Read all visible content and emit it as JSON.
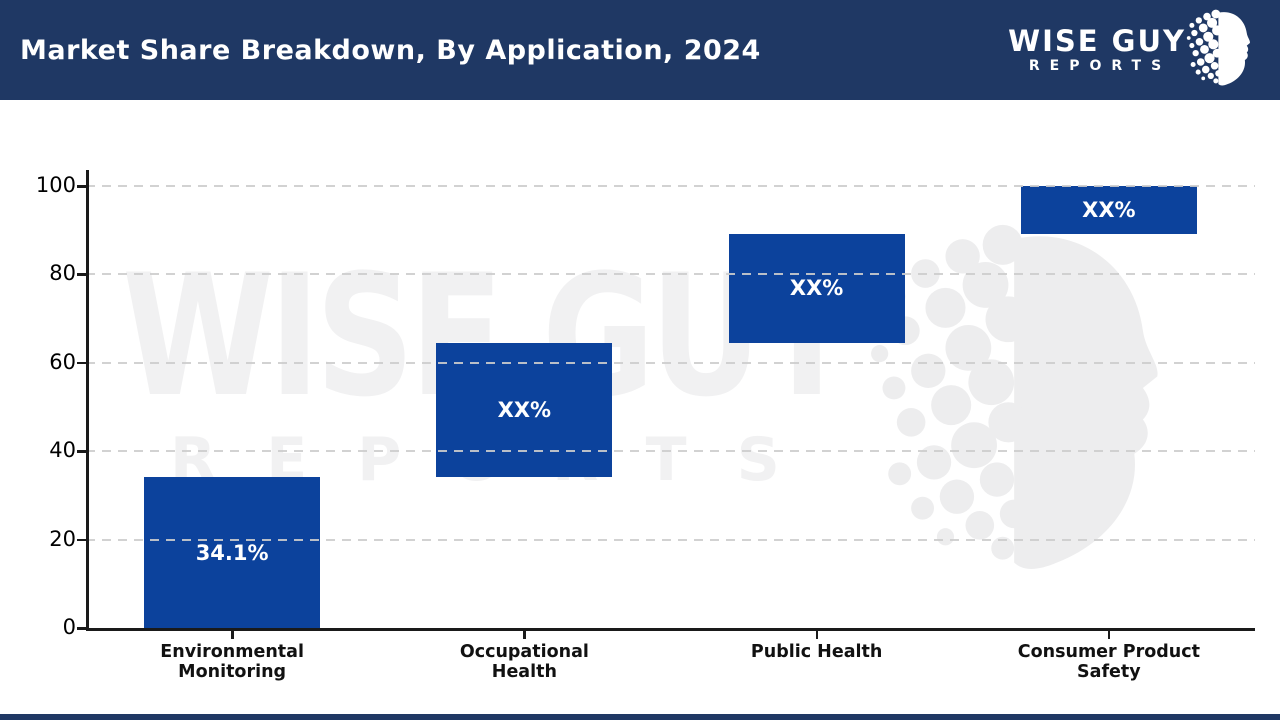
{
  "header": {
    "title": "Market Share Breakdown, By Application, 2024",
    "bg_color": "#1f3864",
    "logo": {
      "line1": "WISE GUY",
      "line2": "REPORTS"
    }
  },
  "watermark": {
    "line1": "WISE GUY",
    "line2": "REPORTS"
  },
  "icons": {
    "logo_head": "dotted-head-profile-icon",
    "watermark_head": "dotted-head-profile-icon"
  },
  "footer": {
    "bg_color": "#1f3864"
  },
  "chart_data": {
    "type": "bar",
    "subtype": "waterfall-stacked",
    "title": "Market Share Breakdown, By Application, 2024",
    "categories": [
      "Environmental Monitoring",
      "Occupational Health",
      "Public Health",
      "Consumer Product Safety"
    ],
    "category_lines": [
      [
        "Environmental",
        "Monitoring"
      ],
      [
        "Occupational",
        "Health"
      ],
      [
        "Public Health"
      ],
      [
        "Consumer Product",
        "Safety"
      ]
    ],
    "segments": [
      {
        "category": "Environmental Monitoring",
        "start": 0,
        "end": 34.1,
        "label": "34.1%"
      },
      {
        "category": "Occupational Health",
        "start": 34.1,
        "end": 64.5,
        "label": "XX%"
      },
      {
        "category": "Public Health",
        "start": 64.5,
        "end": 89.2,
        "label": "XX%"
      },
      {
        "category": "Consumer Product Safety",
        "start": 89.2,
        "end": 100,
        "label": "XX%"
      }
    ],
    "ylim": [
      0,
      100
    ],
    "yticks": [
      0,
      20,
      40,
      60,
      80,
      100
    ],
    "grid": "horizontal-dashed",
    "legend": false,
    "bar_color": "#0c429c",
    "bar_label_color": "#ffffff",
    "axis_color": "#1a1a1a"
  }
}
